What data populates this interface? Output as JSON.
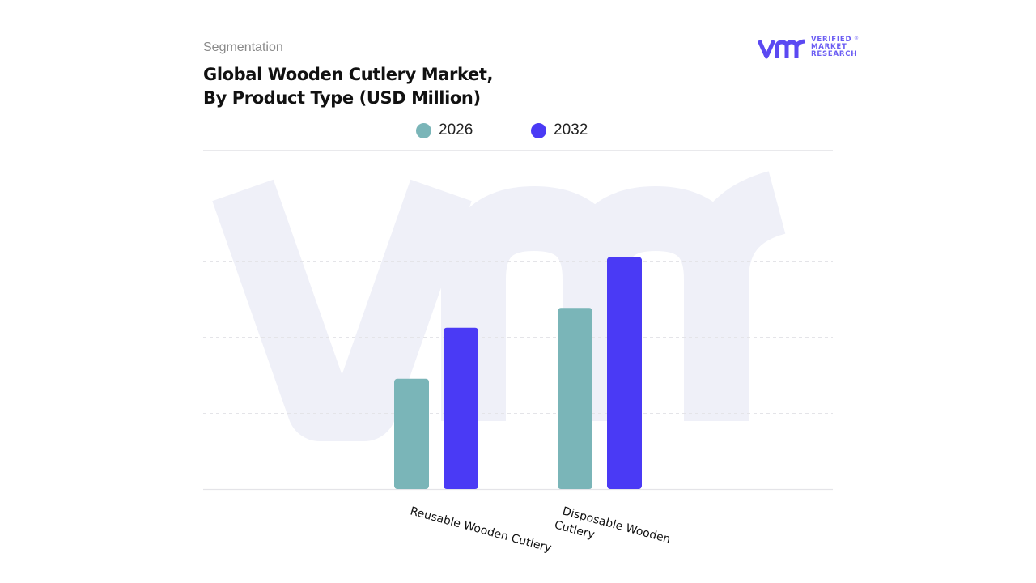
{
  "header": {
    "segment_label": "Segmentation",
    "title_line1": "Global Wooden Cutlery Market,",
    "title_line2": "By Product Type (USD Million)"
  },
  "brand": {
    "line1": "VERIFIED",
    "line2": "MARKET",
    "line3": "RESEARCH",
    "reg": "®",
    "color": "#5b49f2",
    "icon": "vmr-logo-icon"
  },
  "legend": {
    "items": [
      {
        "label": "2026",
        "color": "#7ab5b8"
      },
      {
        "label": "2032",
        "color": "#4a3af5"
      }
    ]
  },
  "chart_data": {
    "type": "bar",
    "title": "Global Wooden Cutlery Market, By Product Type (USD Million)",
    "categories": [
      "Reusable Wooden Cutlery",
      "Disposable Wooden Cutlery"
    ],
    "series": [
      {
        "name": "2026",
        "values": [
          1.45,
          2.38
        ],
        "color": "#7ab5b8"
      },
      {
        "name": "2032",
        "values": [
          2.12,
          3.05
        ],
        "color": "#4a3af5"
      }
    ],
    "ylim": [
      0,
      4
    ],
    "y_axis_labels_shown": false,
    "grid": true,
    "legend_position": "top-center",
    "xlabel": "",
    "ylabel": ""
  }
}
